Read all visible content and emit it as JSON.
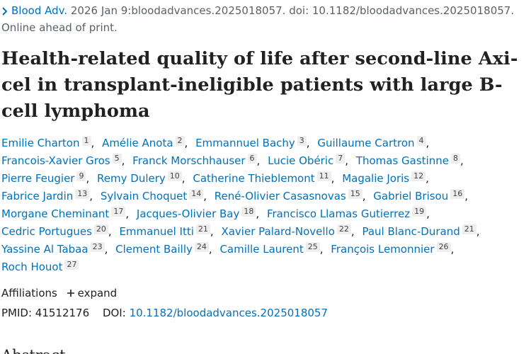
{
  "citation": {
    "journal": "Blood Adv.",
    "details": "2026 Jan 9:bloodadvances.2025018057. doi: 10.1182/bloodadvances.2025018057."
  },
  "status": "Online ahead of print.",
  "title": "Health-related quality of life after second-line Axi-cel in transplant-ineligible patients with large B-cell lymphoma",
  "authors": [
    {
      "name": "Emilie Charton",
      "aff": "1"
    },
    {
      "name": "Amélie Anota",
      "aff": "2"
    },
    {
      "name": "Emmannuel Bachy",
      "aff": "3"
    },
    {
      "name": "Guillaume Cartron",
      "aff": "4"
    },
    {
      "name": "Francois-Xavier Gros",
      "aff": "5"
    },
    {
      "name": "Franck Morschhauser",
      "aff": "6"
    },
    {
      "name": "Lucie Obéric",
      "aff": "7"
    },
    {
      "name": "Thomas Gastinne",
      "aff": "8"
    },
    {
      "name": "Pierre Feugier",
      "aff": "9"
    },
    {
      "name": "Remy Dulery",
      "aff": "10"
    },
    {
      "name": "Catherine Thieblemont",
      "aff": "11"
    },
    {
      "name": "Magalie Joris",
      "aff": "12"
    },
    {
      "name": "Fabrice Jardin",
      "aff": "13"
    },
    {
      "name": "Sylvain Choquet",
      "aff": "14"
    },
    {
      "name": "René-Olivier Casasnovas",
      "aff": "15"
    },
    {
      "name": "Gabriel Brisou",
      "aff": "16"
    },
    {
      "name": "Morgane Cheminant",
      "aff": "17"
    },
    {
      "name": "Jacques-Olivier Bay",
      "aff": "18"
    },
    {
      "name": "Francisco Llamas Gutierrez",
      "aff": "19"
    },
    {
      "name": "Cedric Portugues",
      "aff": "20"
    },
    {
      "name": "Emmanuel Itti",
      "aff": "21"
    },
    {
      "name": "Xavier Palard-Novello",
      "aff": "22"
    },
    {
      "name": "Paul Blanc-Durand",
      "aff": "21"
    },
    {
      "name": "Yassine Al Tabaa",
      "aff": "23"
    },
    {
      "name": "Clement Bailly",
      "aff": "24"
    },
    {
      "name": "Camille Laurent",
      "aff": "25"
    },
    {
      "name": "François Lemonnier",
      "aff": "26"
    },
    {
      "name": "Roch Houot",
      "aff": "27"
    }
  ],
  "affiliations": {
    "label": "Affiliations",
    "toggle": "expand"
  },
  "ids": {
    "pmid_label": "PMID:",
    "pmid": "41512176",
    "doi_label": "DOI:",
    "doi": "10.1182/bloodadvances.2025018057"
  },
  "abstract_heading": "Abstract"
}
